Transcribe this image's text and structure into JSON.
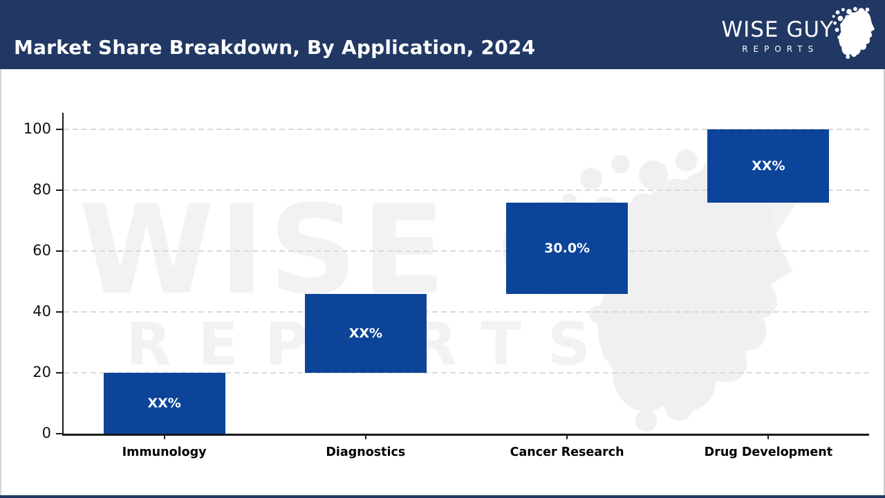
{
  "header": {
    "title": "Market Share Breakdown, By Application, 2024",
    "logo": {
      "line1": "WISE GUY",
      "line2": "REPORTS"
    }
  },
  "watermark": {
    "line1": "WISE GUY",
    "line2": "REPORTS"
  },
  "colors": {
    "header_bg": "#213864",
    "footer_bg": "#213864",
    "bar": "#0c4499",
    "bar_label": "#ffffff",
    "grid": "#d9d9d9",
    "axis": "#1a1a1a",
    "watermark": "#f2f2f4"
  },
  "chart_data": {
    "type": "bar",
    "variant": "waterfall-floating-bars",
    "title": "Market Share Breakdown, By Application, 2024",
    "categories": [
      "Immunology",
      "Diagnostics",
      "Cancer Research",
      "Drug Development"
    ],
    "bars": [
      {
        "category": "Immunology",
        "start": 0,
        "end": 20,
        "label": "XX%"
      },
      {
        "category": "Diagnostics",
        "start": 20,
        "end": 46,
        "label": "XX%"
      },
      {
        "category": "Cancer Research",
        "start": 46,
        "end": 76,
        "label": "30.0%"
      },
      {
        "category": "Drug Development",
        "start": 76,
        "end": 100,
        "label": "XX%"
      }
    ],
    "xlabel": "",
    "ylabel": "",
    "yticks": [
      0,
      20,
      40,
      60,
      80,
      100
    ],
    "ylim": [
      0,
      105.5
    ],
    "grid": "horizontal-dashed",
    "legend": "none"
  }
}
